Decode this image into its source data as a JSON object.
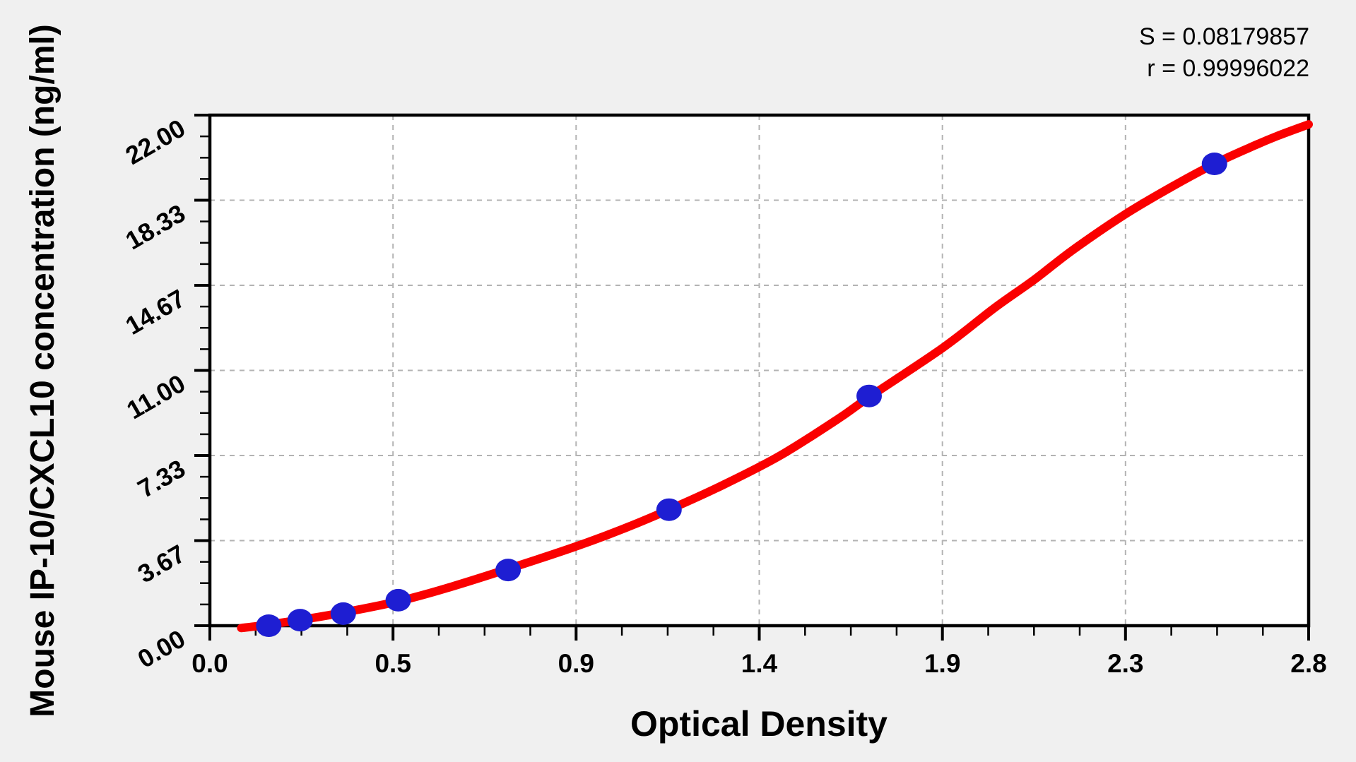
{
  "annotation": {
    "s_label": "S = 0.08179857",
    "r_label": "r = 0.99996022"
  },
  "chart_data": {
    "type": "scatter",
    "title": "",
    "xlabel": "Optical Density",
    "ylabel": "Mouse IP-10/CXCL10 concentration (ng/ml)",
    "xlim": [
      0,
      2.8
    ],
    "ylim": [
      0,
      22
    ],
    "grid": "dashed gray lines at major ticks, plot background white",
    "legend": "none",
    "x_tick_values": [
      0,
      0.4667,
      0.9333,
      1.4,
      1.8667,
      2.3333,
      2.8
    ],
    "x_tick_labels": [
      "0.0",
      "0.5",
      "0.9",
      "1.4",
      "1.9",
      "2.3",
      "2.8"
    ],
    "y_tick_values": [
      0,
      3.6667,
      7.3333,
      11,
      14.6667,
      18.3333,
      22
    ],
    "y_tick_labels": [
      "0.00",
      "3.67",
      "7.33",
      "11.00",
      "14.67",
      "18.33",
      "22.00"
    ],
    "minor_divisions_per_major": 4,
    "points": {
      "x": [
        0.15,
        0.23,
        0.34,
        0.48,
        0.76,
        1.17,
        1.68,
        2.56
      ],
      "y": [
        0.0,
        0.24,
        0.52,
        1.1,
        2.4,
        5.0,
        9.9,
        19.9
      ]
    },
    "fit_curve": {
      "x": [
        0.08,
        0.15,
        0.25,
        0.35,
        0.48,
        0.6,
        0.76,
        0.93,
        1.05,
        1.17,
        1.3,
        1.45,
        1.6,
        1.68,
        1.87,
        2.0,
        2.1,
        2.2,
        2.33,
        2.45,
        2.56,
        2.65,
        2.72,
        2.8
      ],
      "y": [
        -0.1,
        0.05,
        0.3,
        0.6,
        1.05,
        1.6,
        2.45,
        3.4,
        4.15,
        5.0,
        6.0,
        7.3,
        8.9,
        9.85,
        12.0,
        13.7,
        14.9,
        16.2,
        17.7,
        18.9,
        19.9,
        20.6,
        21.1,
        21.6
      ],
      "annotations": [
        "S = 0.08179857",
        "r = 0.99996022"
      ]
    }
  },
  "colors": {
    "background": "#f0f0f0",
    "plot_background": "#ffffff",
    "axis": "#000000",
    "grid": "#b3b3b3",
    "curve": "#fa0000",
    "marker": "#1e1ed2",
    "text": "#000000"
  }
}
